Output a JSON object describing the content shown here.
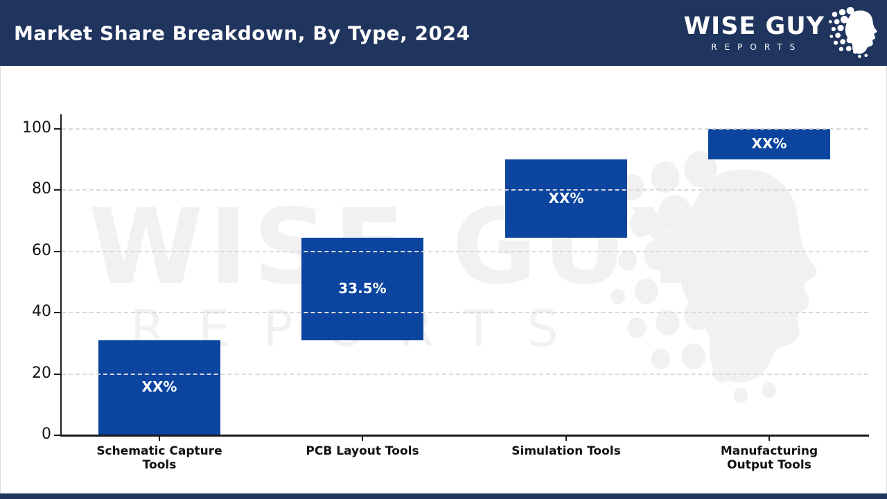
{
  "page": {
    "background": "#ffffff",
    "border_color": "#d9d9d9"
  },
  "header": {
    "background": "#20355e",
    "title": "Market Share Breakdown, By Type, 2024",
    "logo": {
      "brand_line1": "WISE GUY",
      "brand_line2": "REPORTS"
    }
  },
  "watermark": {
    "line1": "WISE GUY",
    "line2": "REPORTS"
  },
  "footer": {
    "background": "#20355e"
  },
  "chart_data": {
    "type": "bar",
    "subtype": "waterfall",
    "title": "Market Share Breakdown, By Type, 2024",
    "categories": [
      [
        "Schematic Capture",
        "Tools"
      ],
      [
        "PCB Layout Tools"
      ],
      [
        "Simulation Tools"
      ],
      [
        "Manufacturing",
        "Output Tools"
      ]
    ],
    "segments": [
      {
        "name": "Schematic Capture Tools",
        "start": 0,
        "end": 31,
        "label": "XX%"
      },
      {
        "name": "PCB Layout Tools",
        "start": 31,
        "end": 64.5,
        "label": "33.5%"
      },
      {
        "name": "Simulation Tools",
        "start": 64.5,
        "end": 90,
        "label": "XX%"
      },
      {
        "name": "Manufacturing Output Tools",
        "start": 90,
        "end": 100,
        "label": "XX%"
      }
    ],
    "yticks": [
      0,
      20,
      40,
      60,
      80,
      100
    ],
    "ylim": [
      0,
      100
    ],
    "grid": true,
    "legend": false,
    "bar_color": "#0c45a0",
    "bar_label_color": "#ffffff",
    "axis_color": "#1a1a1a",
    "grid_color": "#d9d9d9"
  }
}
